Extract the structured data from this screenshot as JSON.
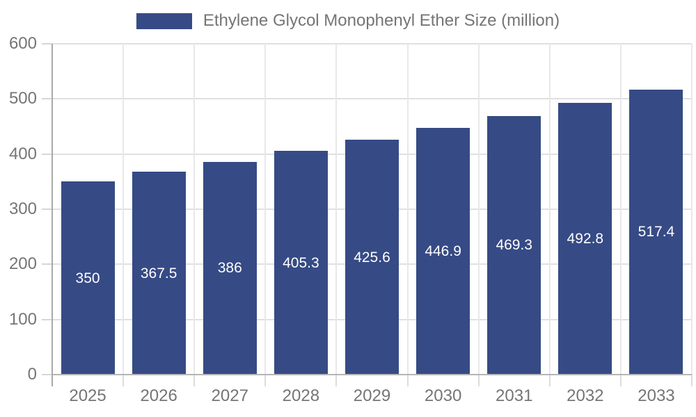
{
  "legend": {
    "label": "Ethylene Glycol Monophenyl Ether Size (million)",
    "swatch_color": "#364a85"
  },
  "chart_data": {
    "type": "bar",
    "title": "",
    "categories": [
      "2025",
      "2026",
      "2027",
      "2028",
      "2029",
      "2030",
      "2031",
      "2032",
      "2033"
    ],
    "series": [
      {
        "name": "Ethylene Glycol Monophenyl Ether Size (million)",
        "values": [
          350,
          367.5,
          386,
          405.3,
          425.6,
          446.9,
          469.3,
          492.8,
          517.4
        ]
      }
    ],
    "value_labels": [
      "350",
      "367.5",
      "386",
      "405.3",
      "425.6",
      "446.9",
      "469.3",
      "492.8",
      "517.4"
    ],
    "xlabel": "",
    "ylabel": "",
    "ylim": [
      0,
      600
    ],
    "y_ticks": [
      0,
      100,
      200,
      300,
      400,
      500,
      600
    ],
    "grid": true,
    "legend_position": "top",
    "colors": {
      "bar": "#364a85",
      "bar_value_text": "#ffffff",
      "axis_text": "#757575",
      "gridline": "#e0e0e0",
      "axis_line": "#a9a9a9"
    }
  }
}
